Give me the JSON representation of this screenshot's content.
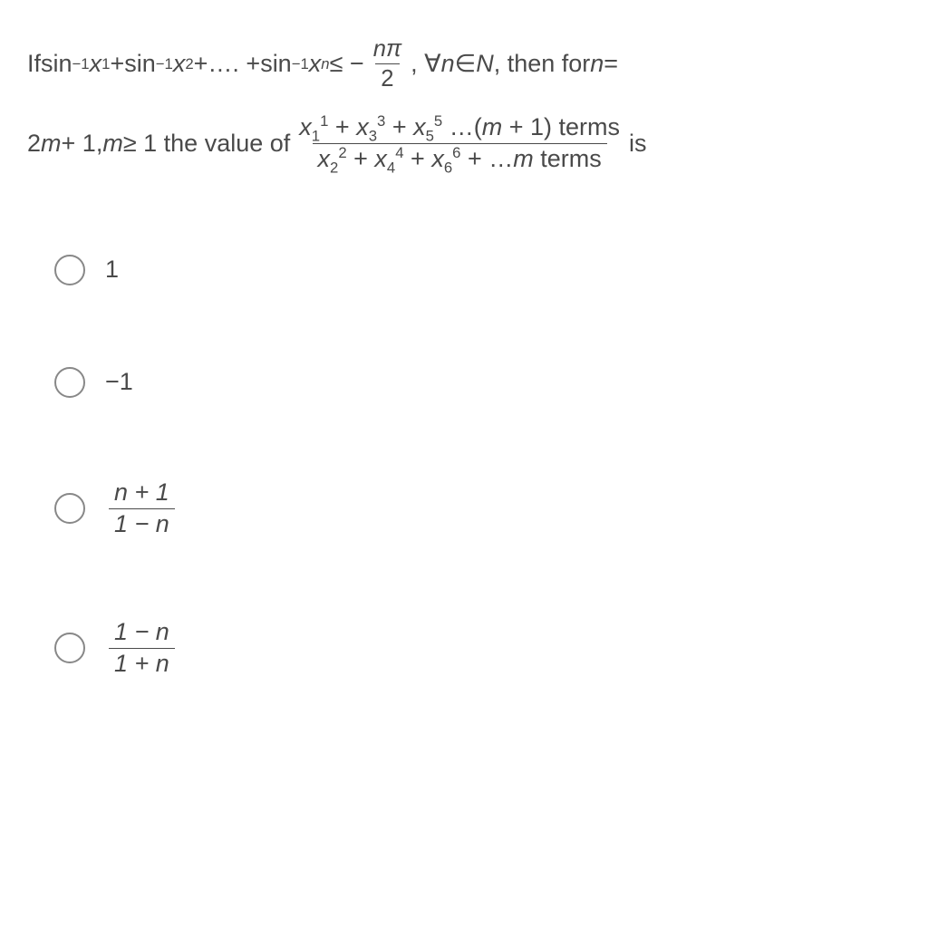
{
  "question": {
    "line1": {
      "if": "If ",
      "sin": "sin",
      "sup_neg1": "−1",
      "x": "x",
      "sub1": "1",
      "plus": " + ",
      "sub2": "2",
      "ellipsis": " +…. + ",
      "subn": "n",
      "leq": " ≤ −",
      "frac_num": "nπ",
      "frac_den": "2",
      "forall": ", ∀",
      "n": "n",
      "in": " ∈ ",
      "N": "N",
      "then": ", then for ",
      "eq": " = "
    },
    "line2": {
      "pre": "2",
      "m": "m",
      "plus1": " + 1, ",
      "geq": " ≥ 1 the value of ",
      "num_x1": "x",
      "num_s1a": "1",
      "num_s1b": "1",
      "num_plus": " + ",
      "num_x3": "x",
      "num_s3a": "3",
      "num_s3b": "3",
      "num_x5": "x",
      "num_s5a": "5",
      "num_s5b": "5",
      "num_tail": " …(",
      "num_m": "m",
      "num_tail2": " + 1) terms",
      "den_x2": "x",
      "den_s2a": "2",
      "den_s2b": "2",
      "den_x4": "x",
      "den_s4a": "4",
      "den_s4b": "4",
      "den_x6": "x",
      "den_s6a": "6",
      "den_s6b": "6",
      "den_tail": " + …",
      "den_m": "m",
      "den_tail2": " terms",
      "is": " is"
    }
  },
  "options": {
    "a": "1",
    "b": "−1",
    "c_num": "n + 1",
    "c_den": "1 − n",
    "d_num": "1 − n",
    "d_den": "1 + n"
  }
}
